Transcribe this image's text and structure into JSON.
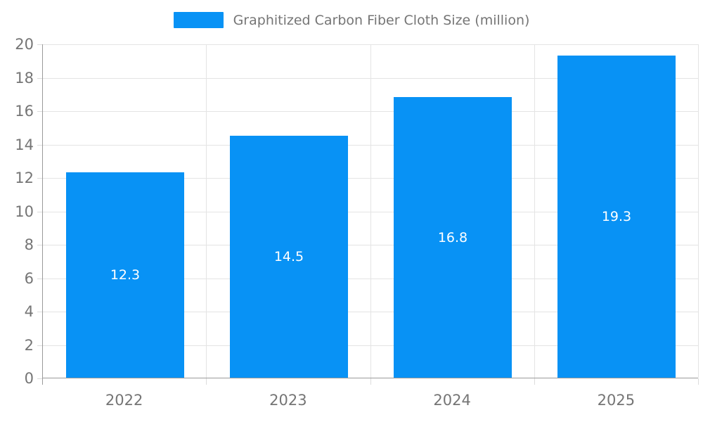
{
  "legend": {
    "label": "Graphitized Carbon Fiber Cloth Size (million)"
  },
  "chart_data": {
    "type": "bar",
    "title": "Graphitized Carbon Fiber Cloth Size (million)",
    "categories": [
      "2022",
      "2023",
      "2024",
      "2025"
    ],
    "values": [
      12.3,
      14.5,
      16.8,
      19.3
    ],
    "value_labels": [
      "12.3",
      "14.5",
      "16.8",
      "19.3"
    ],
    "xlabel": "",
    "ylabel": "",
    "ylim": [
      0,
      20
    ],
    "ytick_step": 2,
    "ytick_labels": [
      "0",
      "2",
      "4",
      "6",
      "8",
      "10",
      "12",
      "14",
      "16",
      "18",
      "20"
    ],
    "grid": true,
    "legend_position": "top",
    "bar_color": "#0892f5",
    "value_label_color": "#ffffff",
    "axis_text_color": "#757575",
    "gridline_color": "#e4e4e4",
    "axis_line_color": "#9a9a9a",
    "background_color": "#ffffff"
  }
}
